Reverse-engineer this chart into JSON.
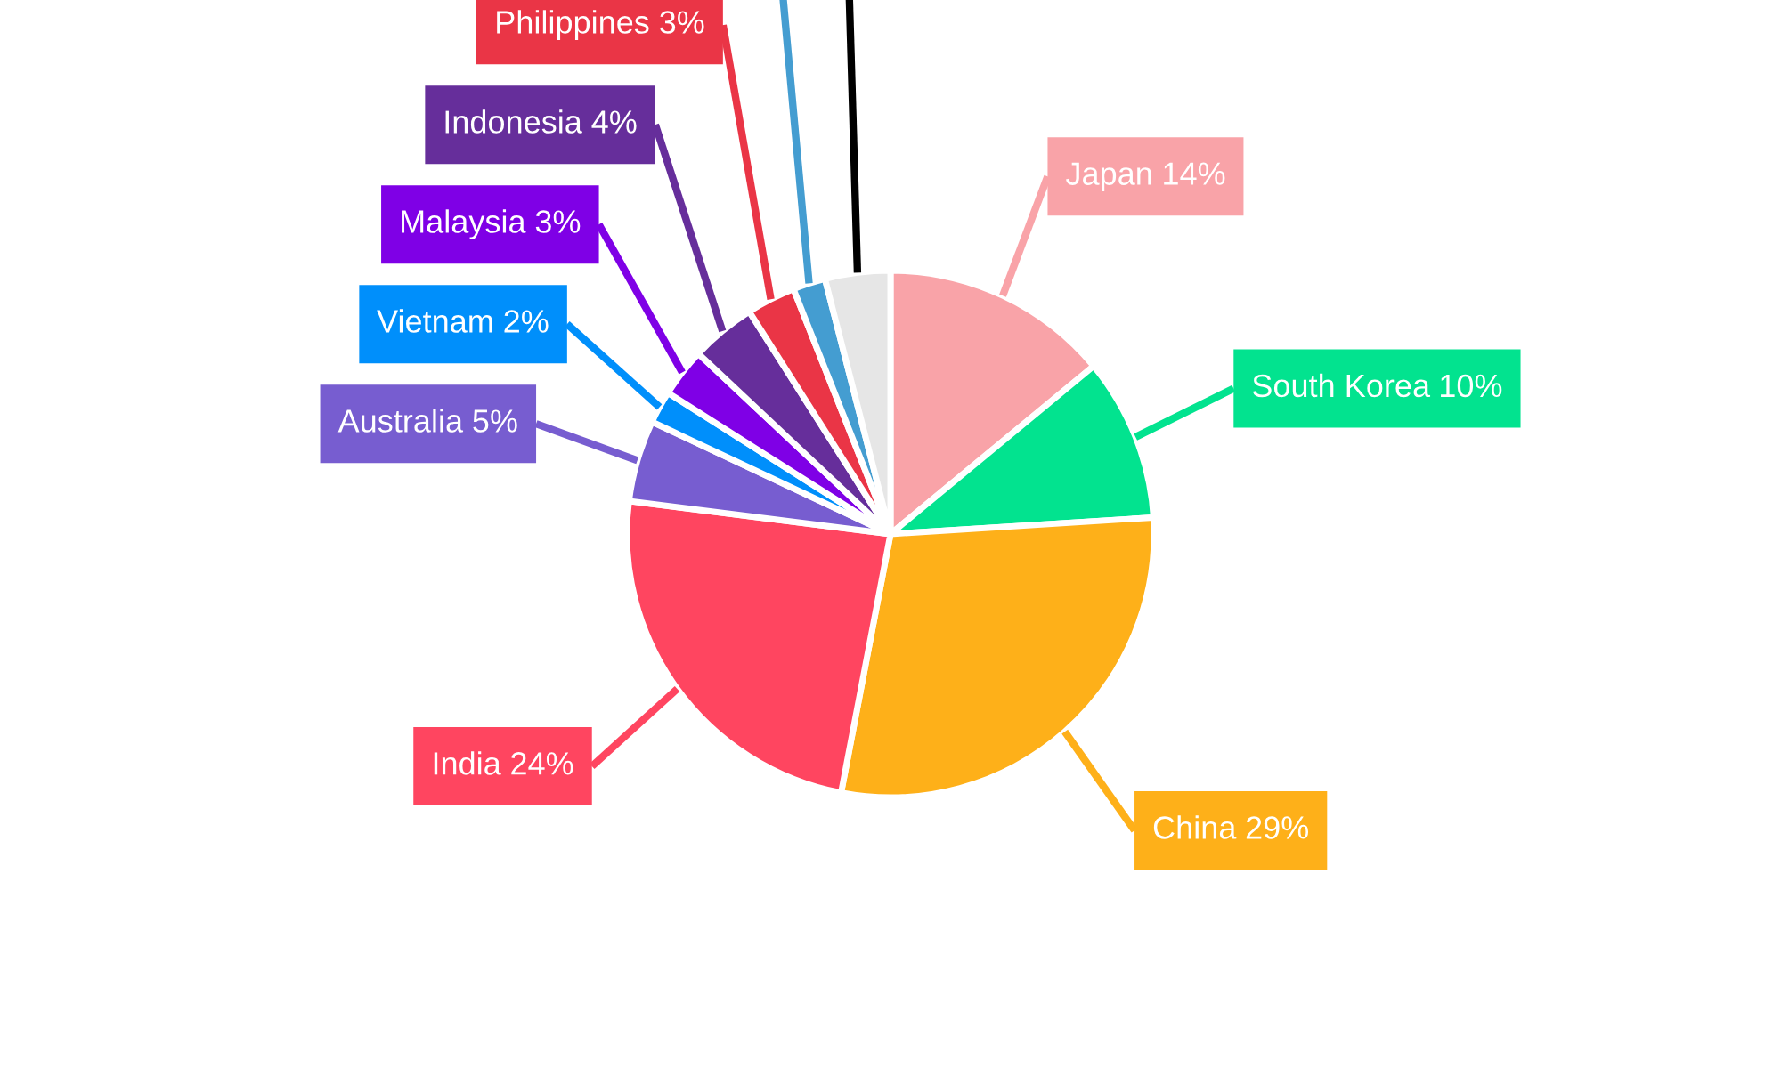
{
  "chart_data": {
    "type": "pie",
    "categories": [
      "Japan",
      "South Korea",
      "China",
      "India",
      "Australia",
      "Vietnam",
      "Malaysia",
      "Indonesia",
      "Philippines",
      null,
      null
    ],
    "values": [
      14,
      10,
      29,
      24,
      5,
      2,
      3,
      4,
      3,
      2,
      4
    ],
    "colors": [
      "#f9a3a8",
      "#02e38f",
      "#feb019",
      "#ff4560",
      "#775dd0",
      "#008ffb",
      "#7f00e6",
      "#662e9b",
      "#ea3546",
      "#449dd1",
      "#e6e6e6"
    ],
    "value_labels": [
      "14%",
      "10%",
      "29%",
      "24%",
      "5%",
      "2%",
      "3%",
      "4%",
      "3%",
      null,
      null
    ]
  }
}
